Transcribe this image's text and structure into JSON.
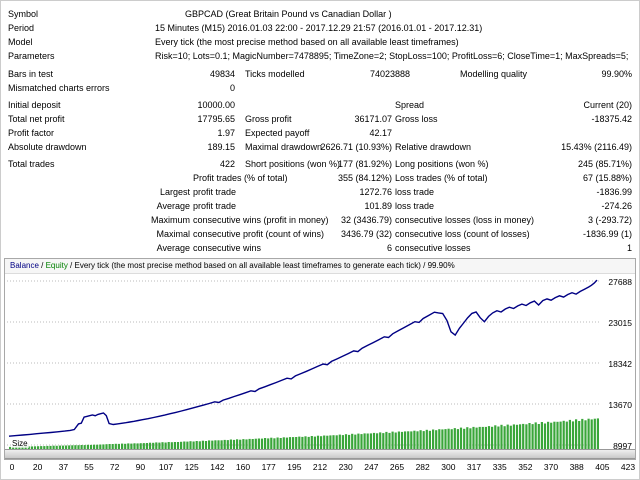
{
  "report": {
    "rows": [
      {
        "top": 8,
        "cells": [
          {
            "pos": "l8",
            "text": "Symbol"
          },
          {
            "pos": "l185",
            "text": "GBPCAD (Great Britain Pound vs Canadian Dollar )"
          }
        ]
      },
      {
        "top": 22,
        "cells": [
          {
            "pos": "l8",
            "text": "Period"
          },
          {
            "pos": "l155",
            "text": "15 Minutes (M15) 2016.01.03 22:00 - 2017.12.29 21:57 (2016.01.01 - 2017.12.31)"
          }
        ]
      },
      {
        "top": 36,
        "cells": [
          {
            "pos": "l8",
            "text": "Model"
          },
          {
            "pos": "l155",
            "text": "Every tick (the most precise method based on all available least timeframes)"
          }
        ]
      },
      {
        "top": 50,
        "cells": [
          {
            "pos": "l8",
            "text": "Parameters"
          },
          {
            "pos": "l155",
            "text": "Risk=10; Lots=0.1; MagicNumber=7478895; TimeZone=2; StopLoss=100; ProfitLoss=6; CloseTime=1; MaxSpreads=5;"
          }
        ]
      },
      {
        "top": 68,
        "cells": [
          {
            "pos": "l8",
            "text": "Bars in test"
          },
          {
            "pos": "r235",
            "text": "49834"
          },
          {
            "pos": "l245",
            "text": "Ticks modelled"
          },
          {
            "pos": "r410",
            "text": "74023888"
          },
          {
            "pos": "l460",
            "text": "Modelling quality"
          },
          {
            "pos": "r632",
            "text": "99.90%"
          }
        ]
      },
      {
        "top": 82,
        "cells": [
          {
            "pos": "l8",
            "text": "Mismatched charts errors"
          },
          {
            "pos": "r235",
            "text": "0"
          }
        ]
      },
      {
        "top": 99,
        "cells": [
          {
            "pos": "l8",
            "text": "Initial deposit"
          },
          {
            "pos": "r235",
            "text": "10000.00"
          },
          {
            "pos": "l395",
            "text": "Spread"
          },
          {
            "pos": "r632",
            "text": "Current (20)"
          }
        ]
      },
      {
        "top": 113,
        "cells": [
          {
            "pos": "l8",
            "text": "Total net profit"
          },
          {
            "pos": "r235",
            "text": "17795.65"
          },
          {
            "pos": "l245",
            "text": "Gross profit"
          },
          {
            "pos": "r392",
            "text": "36171.07"
          },
          {
            "pos": "l395",
            "text": "Gross loss"
          },
          {
            "pos": "r632",
            "text": "-18375.42"
          }
        ]
      },
      {
        "top": 127,
        "cells": [
          {
            "pos": "l8",
            "text": "Profit factor"
          },
          {
            "pos": "r235",
            "text": "1.97"
          },
          {
            "pos": "l245",
            "text": "Expected payoff"
          },
          {
            "pos": "r392",
            "text": "42.17"
          }
        ]
      },
      {
        "top": 141,
        "cells": [
          {
            "pos": "l8",
            "text": "Absolute drawdown"
          },
          {
            "pos": "r235",
            "text": "189.15"
          },
          {
            "pos": "l245",
            "text": "Maximal drawdown"
          },
          {
            "pos": "r392",
            "text": "2626.71 (10.93%)"
          },
          {
            "pos": "l395",
            "text": "Relative drawdown"
          },
          {
            "pos": "r632",
            "text": "15.43% (2116.49)"
          }
        ]
      },
      {
        "top": 158,
        "cells": [
          {
            "pos": "l8",
            "text": "Total trades"
          },
          {
            "pos": "r235",
            "text": "422"
          },
          {
            "pos": "l245",
            "text": "Short positions (won %)"
          },
          {
            "pos": "r392",
            "text": "177 (81.92%)"
          },
          {
            "pos": "l395",
            "text": "Long positions (won %)"
          },
          {
            "pos": "r632",
            "text": "245 (85.71%)"
          }
        ]
      },
      {
        "top": 172,
        "cells": [
          {
            "pos": "l193",
            "text": "Profit trades (% of total)"
          },
          {
            "pos": "r392",
            "text": "355 (84.12%)"
          },
          {
            "pos": "l395",
            "text": "Loss trades (% of total)"
          },
          {
            "pos": "r632",
            "text": "67 (15.88%)"
          }
        ]
      },
      {
        "top": 186,
        "cells": [
          {
            "pos": "r190",
            "text": "Largest"
          },
          {
            "pos": "l193",
            "text": "profit trade"
          },
          {
            "pos": "r392",
            "text": "1272.76"
          },
          {
            "pos": "l395",
            "text": "loss trade"
          },
          {
            "pos": "r632",
            "text": "-1836.99"
          }
        ]
      },
      {
        "top": 200,
        "cells": [
          {
            "pos": "r190",
            "text": "Average"
          },
          {
            "pos": "l193",
            "text": "profit trade"
          },
          {
            "pos": "r392",
            "text": "101.89"
          },
          {
            "pos": "l395",
            "text": "loss trade"
          },
          {
            "pos": "r632",
            "text": "-274.26"
          }
        ]
      },
      {
        "top": 214,
        "cells": [
          {
            "pos": "r190",
            "text": "Maximum"
          },
          {
            "pos": "l193",
            "text": "consecutive wins (profit in money)"
          },
          {
            "pos": "r392",
            "text": "32 (3436.79)"
          },
          {
            "pos": "l395",
            "text": "consecutive losses (loss in money)"
          },
          {
            "pos": "r632",
            "text": "3 (-293.72)"
          }
        ]
      },
      {
        "top": 228,
        "cells": [
          {
            "pos": "r190",
            "text": "Maximal"
          },
          {
            "pos": "l193",
            "text": "consecutive profit (count of wins)"
          },
          {
            "pos": "r392",
            "text": "3436.79 (32)"
          },
          {
            "pos": "l395",
            "text": "consecutive loss (count of losses)"
          },
          {
            "pos": "r632",
            "text": "-1836.99 (1)"
          }
        ]
      },
      {
        "top": 242,
        "cells": [
          {
            "pos": "r190",
            "text": "Average"
          },
          {
            "pos": "l193",
            "text": "consecutive wins"
          },
          {
            "pos": "r392",
            "text": "6"
          },
          {
            "pos": "l395",
            "text": "consecutive losses"
          },
          {
            "pos": "r632",
            "text": "1"
          }
        ]
      }
    ]
  },
  "chart": {
    "legend": {
      "balance": "Balance",
      "equity": "Equity",
      "sep": " / ",
      "method": "Every tick (the most precise method based on all available least timeframes to generate each tick)",
      "quality": "99.90%"
    },
    "size_label": "Size",
    "colors": {
      "balance": "#000084",
      "equity": "#008000",
      "size_fill": "#3aa63a",
      "grid": "#bbbbbb",
      "header_bg": "#f6f6f6"
    }
  },
  "chart_data": {
    "type": "line",
    "title": "Balance / Equity curve with lot Size sub-chart",
    "xlim": [
      0,
      423
    ],
    "ylim": [
      8997,
      27688
    ],
    "y_ticks": [
      27688,
      23015,
      18342,
      13670,
      8997
    ],
    "x_ticks": [
      0,
      20,
      37,
      55,
      72,
      90,
      107,
      125,
      142,
      160,
      177,
      195,
      212,
      230,
      247,
      265,
      282,
      300,
      317,
      335,
      352,
      370,
      388,
      405,
      423
    ],
    "grid": "horizontal-dotted",
    "legend_position": "top-left",
    "series": [
      {
        "name": "Balance",
        "color": "#000084",
        "points": [
          [
            0,
            10000
          ],
          [
            5,
            10070
          ],
          [
            10,
            10140
          ],
          [
            15,
            10210
          ],
          [
            20,
            10280
          ],
          [
            25,
            10350
          ],
          [
            30,
            10420
          ],
          [
            35,
            10500
          ],
          [
            40,
            10580
          ],
          [
            44,
            10660
          ],
          [
            47,
            10760
          ],
          [
            50,
            11400
          ],
          [
            52,
            11480
          ],
          [
            54,
            12180
          ],
          [
            56,
            12260
          ],
          [
            58,
            12340
          ],
          [
            60,
            12420
          ],
          [
            62,
            12340
          ],
          [
            64,
            12480
          ],
          [
            66,
            12560
          ],
          [
            68,
            12640
          ],
          [
            70,
            12350
          ],
          [
            72,
            11450
          ],
          [
            75,
            11330
          ],
          [
            78,
            11400
          ],
          [
            81,
            11470
          ],
          [
            84,
            11540
          ],
          [
            87,
            11620
          ],
          [
            90,
            11700
          ],
          [
            93,
            11790
          ],
          [
            96,
            11880
          ],
          [
            100,
            12000
          ],
          [
            104,
            12130
          ],
          [
            108,
            12270
          ],
          [
            112,
            12410
          ],
          [
            116,
            12560
          ],
          [
            120,
            12710
          ],
          [
            124,
            12870
          ],
          [
            128,
            13030
          ],
          [
            132,
            13200
          ],
          [
            136,
            13370
          ],
          [
            140,
            13550
          ],
          [
            144,
            13730
          ],
          [
            148,
            13920
          ],
          [
            151,
            13840
          ],
          [
            154,
            14110
          ],
          [
            158,
            14310
          ],
          [
            162,
            14520
          ],
          [
            166,
            14730
          ],
          [
            170,
            14950
          ],
          [
            174,
            15170
          ],
          [
            177,
            15090
          ],
          [
            180,
            15400
          ],
          [
            184,
            15630
          ],
          [
            188,
            15870
          ],
          [
            192,
            16110
          ],
          [
            196,
            16360
          ],
          [
            200,
            16610
          ],
          [
            203,
            16530
          ],
          [
            206,
            16870
          ],
          [
            210,
            17130
          ],
          [
            214,
            17400
          ],
          [
            218,
            17670
          ],
          [
            222,
            17950
          ],
          [
            226,
            18230
          ],
          [
            229,
            18150
          ],
          [
            232,
            18520
          ],
          [
            236,
            18810
          ],
          [
            240,
            19110
          ],
          [
            244,
            19410
          ],
          [
            248,
            19720
          ],
          [
            251,
            19640
          ],
          [
            254,
            20030
          ],
          [
            258,
            20350
          ],
          [
            262,
            20670
          ],
          [
            266,
            21000
          ],
          [
            270,
            21330
          ],
          [
            273,
            21250
          ],
          [
            276,
            21670
          ],
          [
            280,
            22010
          ],
          [
            284,
            22350
          ],
          [
            288,
            22700
          ],
          [
            292,
            23050
          ],
          [
            295,
            22970
          ],
          [
            298,
            23410
          ],
          [
            302,
            23770
          ],
          [
            306,
            24130
          ],
          [
            309,
            24050
          ],
          [
            312,
            23980
          ],
          [
            315,
            23200
          ],
          [
            318,
            21900
          ],
          [
            321,
            21520
          ],
          [
            324,
            22300
          ],
          [
            327,
            22900
          ],
          [
            330,
            23500
          ],
          [
            333,
            24000
          ],
          [
            336,
            24150
          ],
          [
            339,
            23500
          ],
          [
            342,
            23050
          ],
          [
            345,
            23650
          ],
          [
            348,
            24050
          ],
          [
            351,
            24300
          ],
          [
            354,
            24150
          ],
          [
            357,
            24500
          ],
          [
            360,
            24700
          ],
          [
            363,
            24550
          ],
          [
            366,
            24850
          ],
          [
            369,
            25050
          ],
          [
            372,
            24900
          ],
          [
            375,
            25200
          ],
          [
            378,
            25400
          ],
          [
            381,
            24950
          ],
          [
            384,
            25450
          ],
          [
            387,
            25650
          ],
          [
            390,
            25500
          ],
          [
            393,
            25800
          ],
          [
            396,
            26000
          ],
          [
            399,
            25850
          ],
          [
            402,
            26150
          ],
          [
            405,
            26350
          ],
          [
            408,
            26200
          ],
          [
            411,
            26500
          ],
          [
            414,
            26750
          ],
          [
            417,
            27000
          ],
          [
            419,
            27200
          ],
          [
            421,
            27450
          ],
          [
            423,
            27795.65
          ]
        ]
      }
    ],
    "size_series": {
      "name": "Size",
      "color": "#3aa63a",
      "normalized": [
        0.02,
        0.03,
        0.04,
        0.05,
        0.06,
        0.07,
        0.08,
        0.09,
        0.1,
        0.12,
        0.13,
        0.14,
        0.15,
        0.17,
        0.18,
        0.19,
        0.21,
        0.22,
        0.24,
        0.25,
        0.27,
        0.28,
        0.3,
        0.32,
        0.33,
        0.35,
        0.37,
        0.38,
        0.4,
        0.42,
        0.44,
        0.46,
        0.48,
        0.5,
        0.52,
        0.54,
        0.56,
        0.58,
        0.6,
        0.63,
        0.65,
        0.67,
        0.7,
        0.72,
        0.75,
        0.77,
        0.8,
        0.83,
        0.85,
        0.88,
        0.91,
        0.94,
        0.97,
        1.0
      ]
    }
  }
}
